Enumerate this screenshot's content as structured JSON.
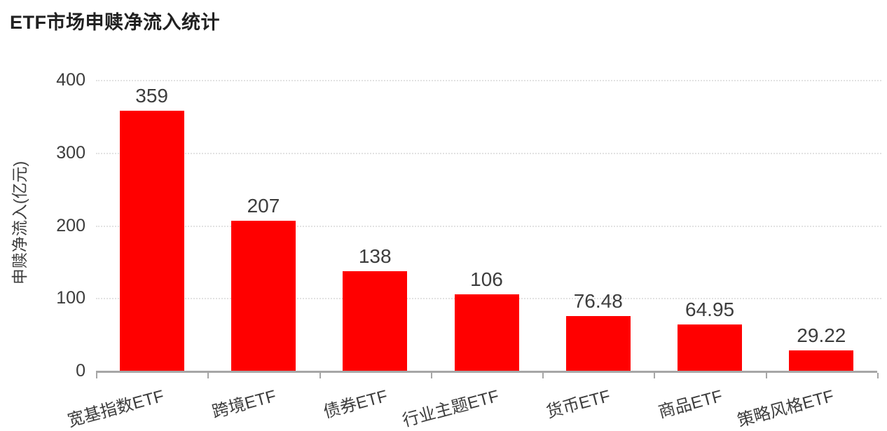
{
  "page": {
    "title": "ETF市场申赎净流入统计"
  },
  "colors": {
    "bar": "#ff0000",
    "axis": "#a6a6a6",
    "gridline": "#e2e2e2",
    "text": "#3d3d3d",
    "title": "#212121"
  },
  "chart_data": {
    "type": "bar",
    "title": "ETF市场申赎净流入统计",
    "categories": [
      "宽基指数ETF",
      "跨境ETF",
      "债券ETF",
      "行业主题ETF",
      "货币ETF",
      "商品ETF",
      "策略风格ETF"
    ],
    "values": [
      359,
      207,
      138,
      106,
      76.48,
      64.95,
      29.22
    ],
    "value_labels": [
      "359",
      "207",
      "138",
      "106",
      "76.48",
      "64.95",
      "29.22"
    ],
    "xlabel": "",
    "ylabel": "申赎净流入(亿元)",
    "ylim": [
      0,
      400
    ],
    "yticks": [
      0,
      100,
      200,
      300,
      400
    ],
    "grid": "horizontal-dotted",
    "legend_position": "none",
    "bar_color": "#ff0000"
  }
}
